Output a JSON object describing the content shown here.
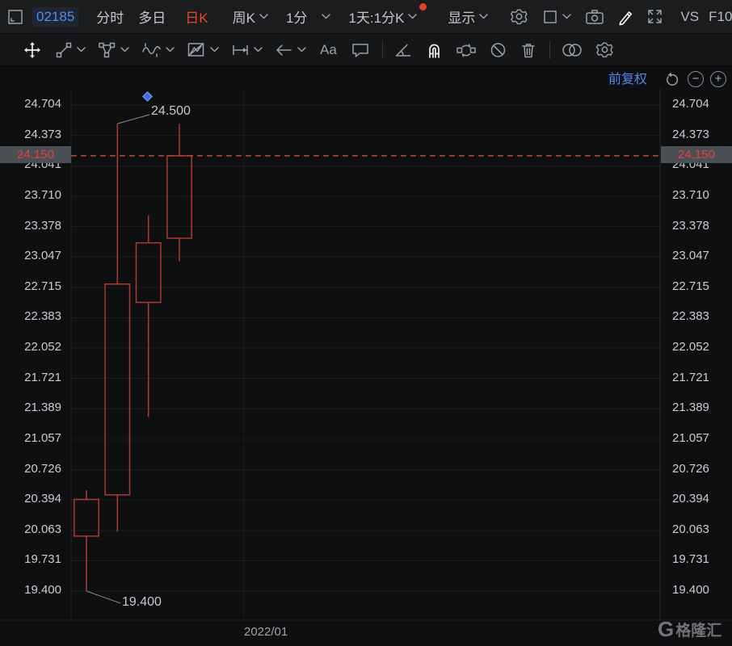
{
  "toolbar_top": {
    "symbol": "02185",
    "tab_minute": "分时",
    "tab_multiday": "多日",
    "tab_daily": "日K",
    "tab_weekly": "周K",
    "tab_1min": "1分",
    "composite_label": "1天:1分K",
    "display_label": "显示",
    "vs_label": "VS",
    "f10_label": "F10",
    "icons": [
      "layout-window-icon",
      "settings-icon",
      "chart-style-icon",
      "camera-icon",
      "pencil-icon",
      "fullscreen-icon",
      "panel-toggle-icon",
      "notification-dot"
    ]
  },
  "toolbar_draw": {
    "text_tool_label": "Aa",
    "icons": [
      "move-icon",
      "trendline-icon",
      "pitchfork-icon",
      "wave-icon",
      "pattern-icon",
      "measure-icon",
      "arrow-icon",
      "text-icon",
      "comment-icon",
      "angle-icon",
      "magnet-icon",
      "sync-icon",
      "hide-icon",
      "trash-icon",
      "overlap-circles-icon",
      "gear-icon"
    ]
  },
  "chart": {
    "adjust_label": "前复权",
    "price_line_label": "24.150",
    "high_label": "24.500",
    "low_label": "19.400",
    "x_axis_label": "2022/01",
    "zoom_out_glyph": "−",
    "zoom_in_glyph": "+",
    "watermark_initial": "G",
    "watermark": "格隆汇"
  },
  "chart_data": {
    "type": "candlestick",
    "symbol": "02185",
    "period": "日K",
    "adjust_mode": "前复权",
    "y_ticks": [
      24.704,
      24.373,
      24.041,
      23.71,
      23.378,
      23.047,
      22.715,
      22.383,
      22.052,
      21.721,
      21.389,
      21.057,
      20.726,
      20.394,
      20.063,
      19.731,
      19.4
    ],
    "ylim": [
      19.4,
      24.704
    ],
    "last_price": 24.15,
    "high_annotation": 24.5,
    "low_annotation": 19.4,
    "x_label": "2022/01",
    "grid": true,
    "candles": [
      {
        "open": 20.0,
        "high": 20.5,
        "low": 19.4,
        "close": 20.4
      },
      {
        "open": 20.45,
        "high": 24.5,
        "low": 20.05,
        "close": 22.75
      },
      {
        "open": 22.55,
        "high": 23.5,
        "low": 21.3,
        "close": 23.2
      },
      {
        "open": 23.25,
        "high": 24.5,
        "low": 23.0,
        "close": 24.15
      }
    ]
  },
  "colors": {
    "candle_up": "#ae3a30",
    "price_line": "#bf4836",
    "price_text": "#e0453c",
    "price_box_bg": "#4a4f55",
    "accent_blue": "#4a8df0",
    "active_tab": "#e8492c",
    "axis_text": "#c9ccd0",
    "icon": "#9aa0a6",
    "icon_active": "#eceff1",
    "toolbar_bg": "#1b1c1e",
    "chart_bg": "#0e0f10",
    "marker_blue": "#3f6de0"
  }
}
